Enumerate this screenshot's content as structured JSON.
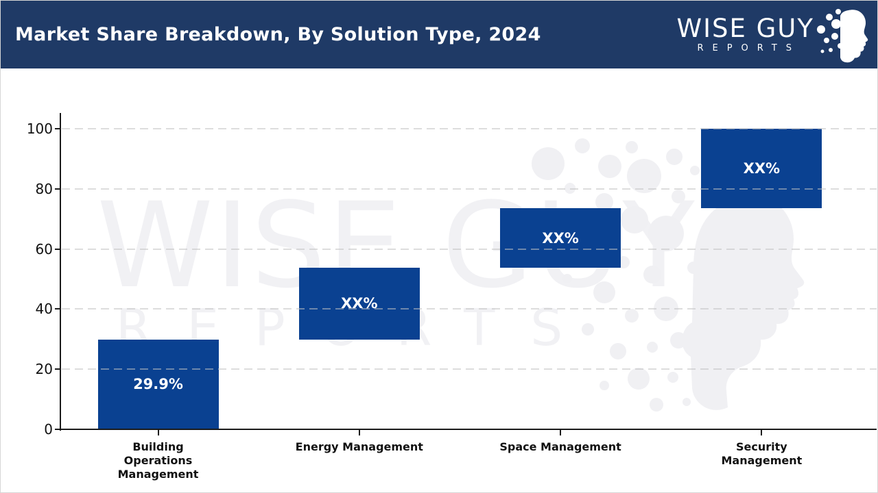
{
  "header": {
    "title": "Market Share Breakdown, By Solution Type, 2024",
    "bg_color": "#1f3a66",
    "logo": {
      "wordmark": "WISE GUY",
      "subtitle": "REPORTS"
    }
  },
  "watermark": {
    "wordmark": "WISE GUY",
    "subtitle": "REPORTS"
  },
  "chart_data": {
    "type": "bar",
    "subtype": "waterfall",
    "title": "Market Share Breakdown, By Solution Type, 2024",
    "categories": [
      "Building Operations Management",
      "Energy Management",
      "Space Management",
      "Security Management"
    ],
    "category_label_lines": [
      [
        "Building",
        "Operations",
        "Management"
      ],
      [
        "Energy Management"
      ],
      [
        "Space Management"
      ],
      [
        "Security",
        "Management"
      ]
    ],
    "bars": [
      {
        "category": "Building Operations Management",
        "base": 0,
        "top": 29.9,
        "value": 29.9,
        "label": "29.9%"
      },
      {
        "category": "Energy Management",
        "base": 29.9,
        "top": 53.7,
        "value": 23.8,
        "label": "XX%"
      },
      {
        "category": "Space Management",
        "base": 53.7,
        "top": 73.6,
        "value": 19.9,
        "label": "XX%"
      },
      {
        "category": "Security Management",
        "base": 73.6,
        "top": 100,
        "value": 26.4,
        "label": "XX%"
      }
    ],
    "y_ticks": [
      0,
      20,
      40,
      60,
      80,
      100
    ],
    "ylim": [
      0,
      105.5
    ],
    "xlabel": "",
    "ylabel": "",
    "grid": "horizontal dashed",
    "legend": "none",
    "bar_color": "#0a4191",
    "bar_label_color": "#ffffff"
  }
}
